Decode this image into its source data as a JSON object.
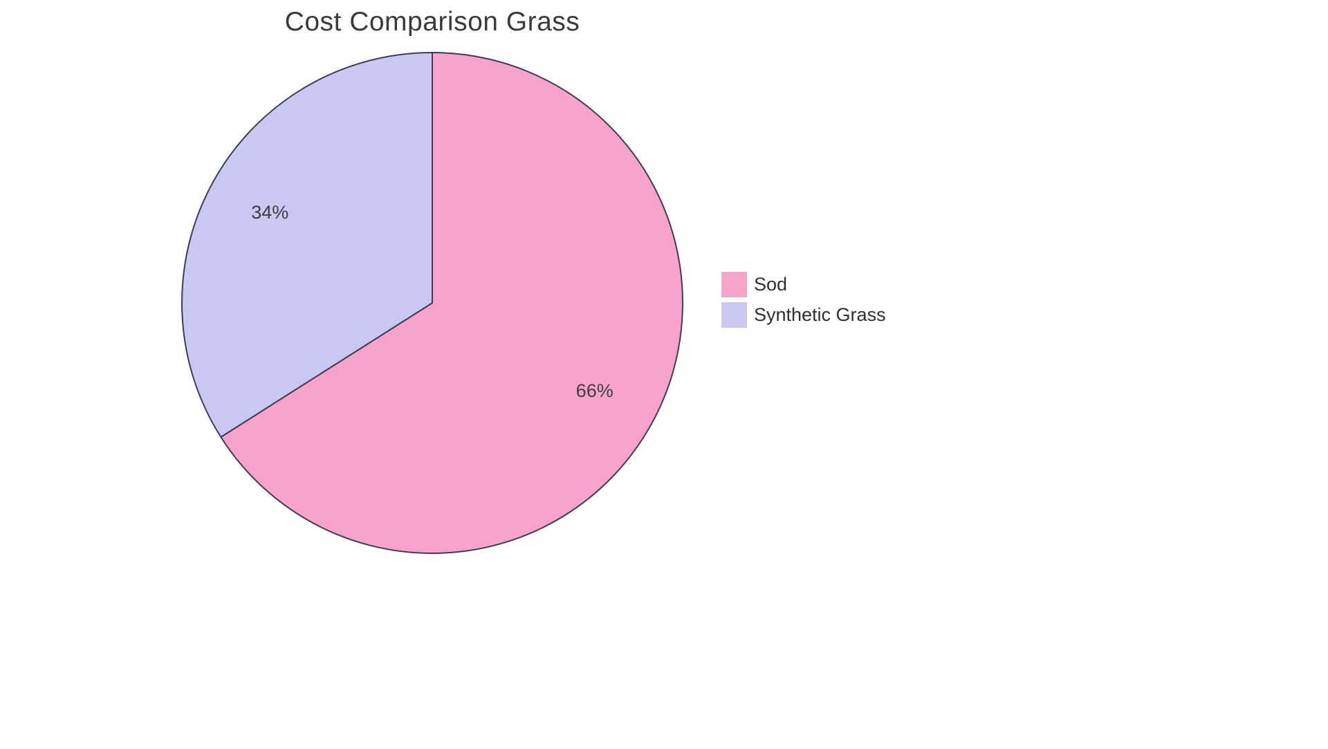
{
  "page": {
    "background_color": "#ffffff"
  },
  "chart_data": {
    "type": "pie",
    "title": "Cost Comparison Grass",
    "labels": [
      "Sod",
      "Synthetic Grass"
    ],
    "values": [
      66,
      34
    ],
    "percent_labels": [
      "66%",
      "34%"
    ],
    "colors": [
      "#F8A3CB",
      "#C8C8F2"
    ],
    "stroke_color": "#3C3C55",
    "text_color": "#3f3f3f",
    "start_angle_deg": -90,
    "direction": "clockwise",
    "legend_position": "right",
    "legend_entries": [
      {
        "label": "Sod",
        "color": "#F8A3CB"
      },
      {
        "label": "Synthetic Grass",
        "color": "#C8C8F2"
      }
    ]
  }
}
